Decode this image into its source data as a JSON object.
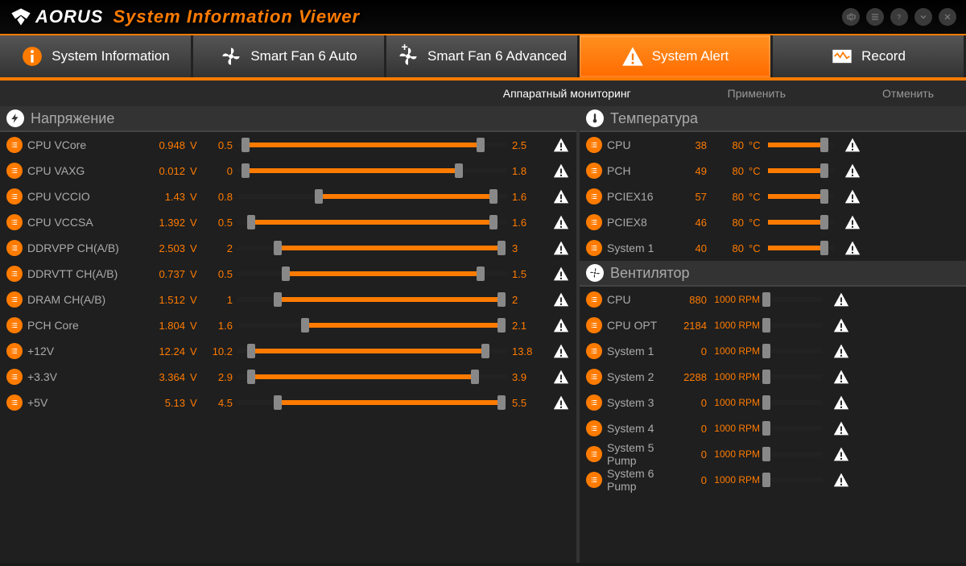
{
  "header": {
    "logo_text": "AORUS",
    "title": "System Information Viewer"
  },
  "tabs": [
    {
      "label": "System Information",
      "icon": "info",
      "active": false
    },
    {
      "label": "Smart Fan 6 Auto",
      "icon": "fan",
      "active": false
    },
    {
      "label": "Smart Fan 6 Advanced",
      "icon": "fan",
      "active": false,
      "plus": true
    },
    {
      "label": "System Alert",
      "icon": "alert",
      "active": true
    },
    {
      "label": "Record",
      "icon": "record",
      "active": false
    }
  ],
  "subbar": {
    "monitoring": "Аппаратный мониторинг",
    "apply": "Применить",
    "cancel": "Отменить"
  },
  "voltage": {
    "title": "Напряжение",
    "rows": [
      {
        "label": "CPU VCore",
        "value": "0.948",
        "unit": "V",
        "min": "0.5",
        "max": "2.5",
        "lo": 0,
        "hi": 100,
        "t1": 3,
        "t2": 90
      },
      {
        "label": "CPU VAXG",
        "value": "0.012",
        "unit": "V",
        "min": "0",
        "max": "1.8",
        "lo": 0,
        "hi": 100,
        "t1": 3,
        "t2": 82
      },
      {
        "label": "CPU VCCIO",
        "value": "1.43",
        "unit": "V",
        "min": "0.8",
        "max": "1.6",
        "lo": 0,
        "hi": 100,
        "t1": 30,
        "t2": 95
      },
      {
        "label": "CPU VCCSA",
        "value": "1.392",
        "unit": "V",
        "min": "0.5",
        "max": "1.6",
        "lo": 0,
        "hi": 100,
        "t1": 5,
        "t2": 95
      },
      {
        "label": "DDRVPP CH(A/B)",
        "value": "2.503",
        "unit": "V",
        "min": "2",
        "max": "3",
        "lo": 0,
        "hi": 100,
        "t1": 15,
        "t2": 98
      },
      {
        "label": "DDRVTT CH(A/B)",
        "value": "0.737",
        "unit": "V",
        "min": "0.5",
        "max": "1.5",
        "lo": 0,
        "hi": 100,
        "t1": 18,
        "t2": 90
      },
      {
        "label": "DRAM CH(A/B)",
        "value": "1.512",
        "unit": "V",
        "min": "1",
        "max": "2",
        "lo": 0,
        "hi": 100,
        "t1": 15,
        "t2": 98
      },
      {
        "label": "PCH Core",
        "value": "1.804",
        "unit": "V",
        "min": "1.6",
        "max": "2.1",
        "lo": 0,
        "hi": 100,
        "t1": 25,
        "t2": 98
      },
      {
        "label": "+12V",
        "value": "12.24",
        "unit": "V",
        "min": "10.2",
        "max": "13.8",
        "lo": 0,
        "hi": 100,
        "t1": 5,
        "t2": 92
      },
      {
        "label": "+3.3V",
        "value": "3.364",
        "unit": "V",
        "min": "2.9",
        "max": "3.9",
        "lo": 0,
        "hi": 100,
        "t1": 5,
        "t2": 88
      },
      {
        "label": "+5V",
        "value": "5.13",
        "unit": "V",
        "min": "4.5",
        "max": "5.5",
        "lo": 0,
        "hi": 100,
        "t1": 15,
        "t2": 98
      }
    ]
  },
  "temperature": {
    "title": "Температура",
    "rows": [
      {
        "label": "CPU",
        "value": "38",
        "threshold": "80",
        "unit": "°C",
        "t": 85
      },
      {
        "label": "PCH",
        "value": "49",
        "threshold": "80",
        "unit": "°C",
        "t": 85
      },
      {
        "label": "PCIEX16",
        "value": "57",
        "threshold": "80",
        "unit": "°C",
        "t": 85
      },
      {
        "label": "PCIEX8",
        "value": "46",
        "threshold": "80",
        "unit": "°C",
        "t": 85
      },
      {
        "label": "System 1",
        "value": "40",
        "threshold": "80",
        "unit": "°C",
        "t": 85
      }
    ]
  },
  "fan": {
    "title": "Вентилятор",
    "rows": [
      {
        "label": "CPU",
        "value": "880",
        "threshold": "1000",
        "unit": "RPM",
        "t": 3
      },
      {
        "label": "CPU OPT",
        "value": "2184",
        "threshold": "1000",
        "unit": "RPM",
        "t": 3
      },
      {
        "label": "System 1",
        "value": "0",
        "threshold": "1000",
        "unit": "RPM",
        "t": 3
      },
      {
        "label": "System 2",
        "value": "2288",
        "threshold": "1000",
        "unit": "RPM",
        "t": 3
      },
      {
        "label": "System 3",
        "value": "0",
        "threshold": "1000",
        "unit": "RPM",
        "t": 3
      },
      {
        "label": "System 4",
        "value": "0",
        "threshold": "1000",
        "unit": "RPM",
        "t": 3
      },
      {
        "label": "System 5 Pump",
        "value": "0",
        "threshold": "1000",
        "unit": "RPM",
        "t": 3
      },
      {
        "label": "System 6 Pump",
        "value": "0",
        "threshold": "1000",
        "unit": "RPM",
        "t": 3
      }
    ]
  },
  "colors": {
    "accent": "#ff7b00",
    "bg": "#1f1f1f"
  }
}
